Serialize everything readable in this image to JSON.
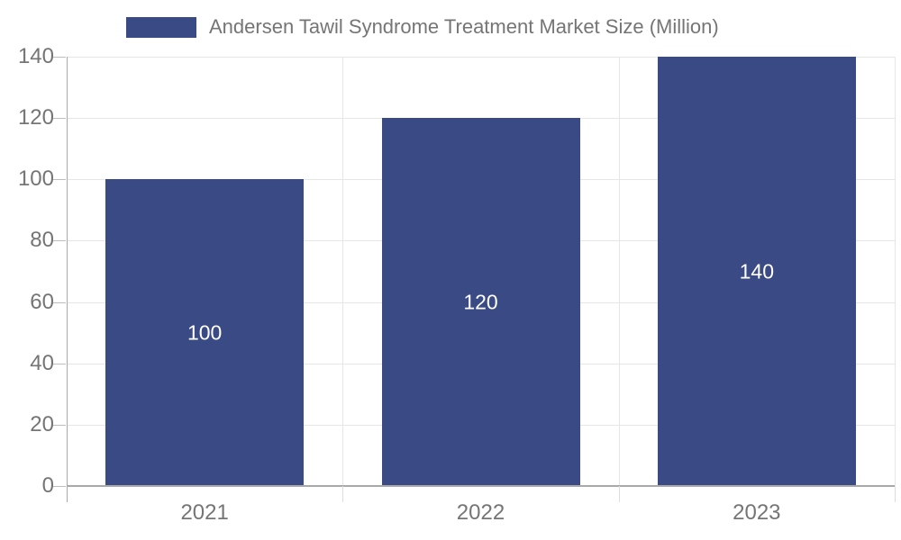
{
  "legend": {
    "label": "Andersen Tawil Syndrome Treatment Market Size (Million)"
  },
  "chart_data": {
    "type": "bar",
    "title": "Andersen Tawil Syndrome Treatment Market Size (Million)",
    "categories": [
      "2021",
      "2022",
      "2023"
    ],
    "values": [
      100,
      120,
      140
    ],
    "bar_labels": [
      "100",
      "120",
      "140"
    ],
    "xlabel": "",
    "ylabel": "",
    "ylim": [
      0,
      140
    ],
    "yticks": [
      0,
      20,
      40,
      60,
      80,
      100,
      120,
      140
    ],
    "grid": true,
    "legend_position": "top-center",
    "colors": {
      "bar": "#3A4A84",
      "bar_label": "#FFFFFF",
      "axis": "#A9A9A9",
      "gridline": "#E6E6E6",
      "tick_text": "#757575",
      "legend_text": "#757575",
      "background": "#FFFFFF"
    }
  }
}
